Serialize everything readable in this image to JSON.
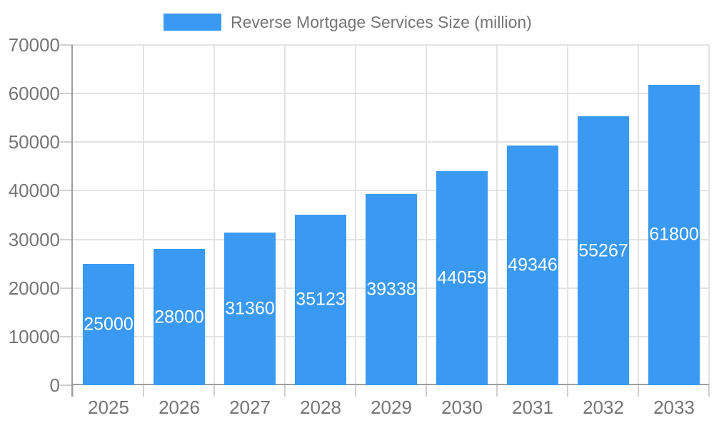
{
  "legend": {
    "label": "Reverse Mortgage Services Size (million)"
  },
  "colors": {
    "bar": "#3A99F2",
    "bar_value_text": "#FFFFFF",
    "axis_line": "#9E9E9E",
    "gridline": "#E3E3E3",
    "tick_mark": "#CFCFCF",
    "tick_text": "#757575",
    "legend_text": "#757575",
    "background": "#FFFFFF"
  },
  "chart_data": {
    "type": "bar",
    "title": "Reverse Mortgage Services Size (million)",
    "legend_position": "top",
    "categories": [
      "2025",
      "2026",
      "2027",
      "2028",
      "2029",
      "2030",
      "2031",
      "2032",
      "2033"
    ],
    "values": [
      25000,
      28000,
      31360,
      35123,
      39338,
      44059,
      49346,
      55267,
      61800
    ],
    "xlabel": "",
    "ylabel": "",
    "ylim": [
      0,
      70000
    ],
    "ytick_step": 10000,
    "ytick_labels": [
      "0",
      "10000",
      "20000",
      "30000",
      "40000",
      "50000",
      "60000",
      "70000"
    ],
    "grid": true,
    "value_label_position": "inside-center"
  }
}
